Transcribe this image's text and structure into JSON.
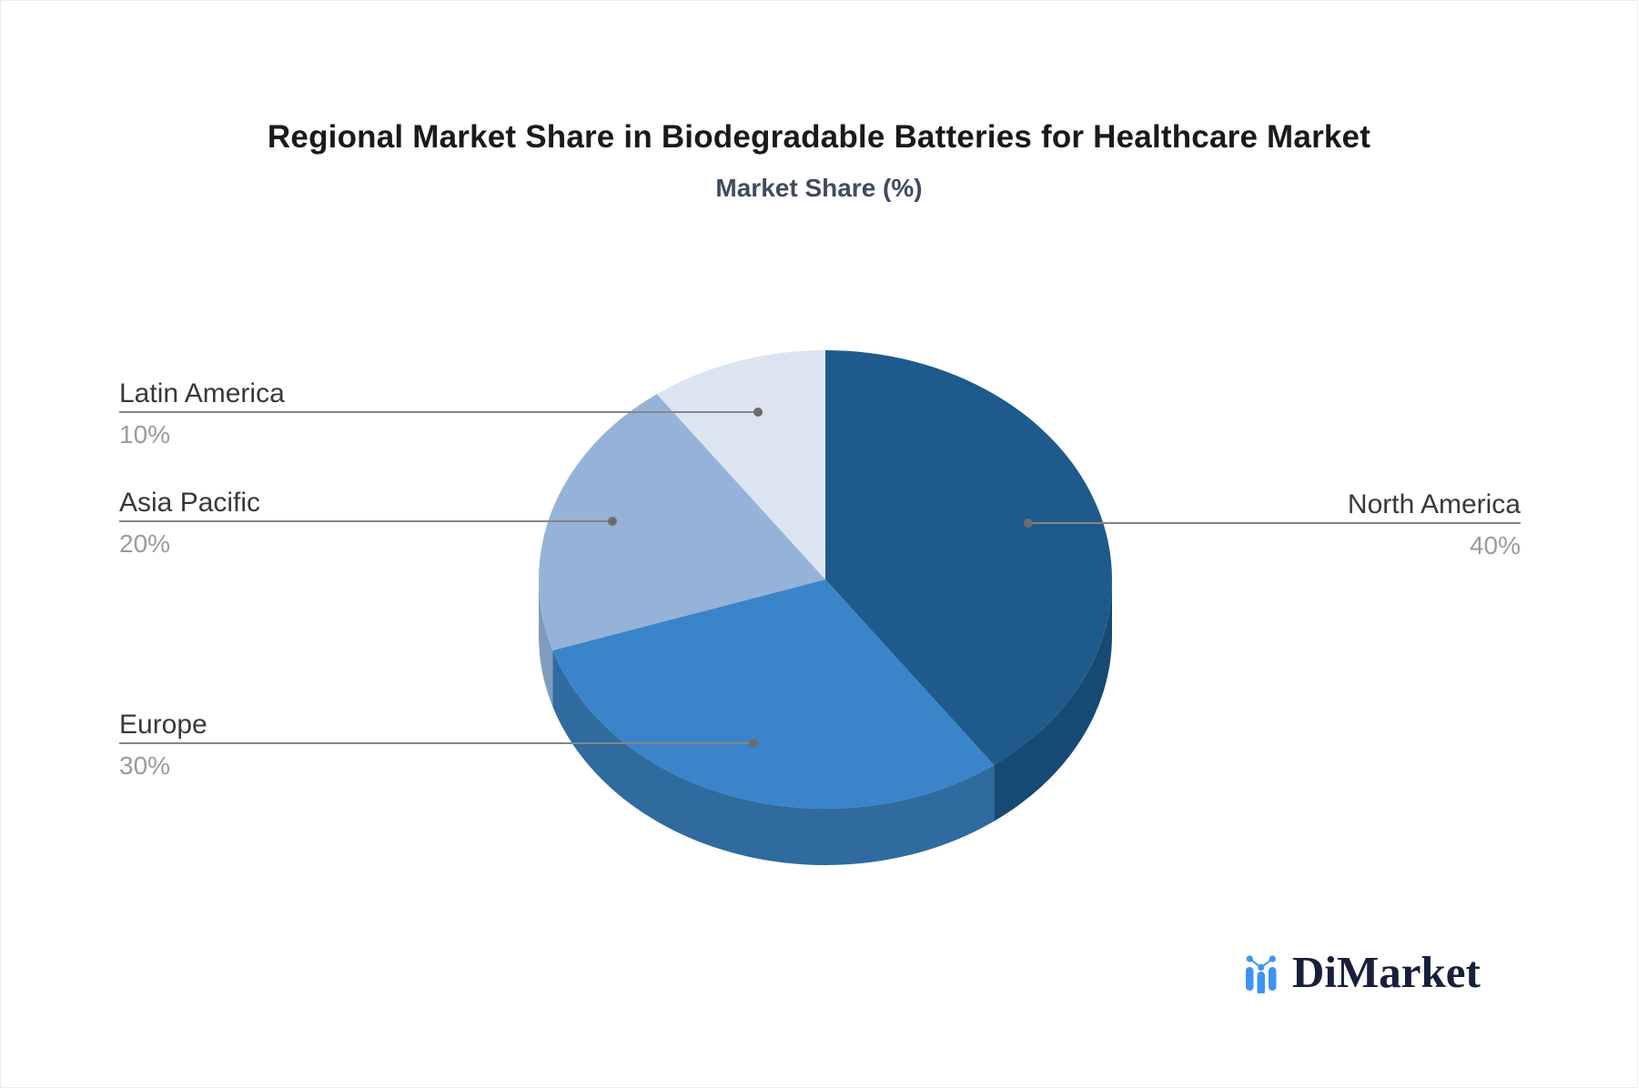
{
  "title": "Regional Market Share in Biodegradable Batteries for Healthcare Market",
  "subtitle": "Market Share (%)",
  "logo": {
    "name": "DiMarket",
    "icon": "bar-line-chart-icon",
    "icon_color": "#3e92f5",
    "text_color": "#16203c"
  },
  "palette": {
    "leader_line": "#868686",
    "leader_dot": "#6d6d6d",
    "label_text": "#383838",
    "percent_text": "#9b9b9b",
    "title_text": "#1a1a1a",
    "subtitle_text": "#3f4b60"
  },
  "chart_data": {
    "type": "pie",
    "title": "Regional Market Share in Biodegradable Batteries for Healthcare Market",
    "subtitle": "Market Share (%)",
    "unit": "%",
    "effect": "3d",
    "direction": "clockwise",
    "start_angle_deg": 0,
    "legend_position": "callout-labels",
    "slices": [
      {
        "label": "North America",
        "value": 40,
        "pct_label": "40%",
        "color": "#1e5a8c",
        "side_color": "#164a74"
      },
      {
        "label": "Europe",
        "value": 30,
        "pct_label": "30%",
        "color": "#3a85ca",
        "side_color": "#2f6b9f"
      },
      {
        "label": "Asia Pacific",
        "value": 20,
        "pct_label": "20%",
        "color": "#95b3d8",
        "side_color": "#7f9cbf"
      },
      {
        "label": "Latin America",
        "value": 10,
        "pct_label": "10%",
        "color": "#dce4f1",
        "side_color": "#c2cfe3"
      }
    ]
  }
}
